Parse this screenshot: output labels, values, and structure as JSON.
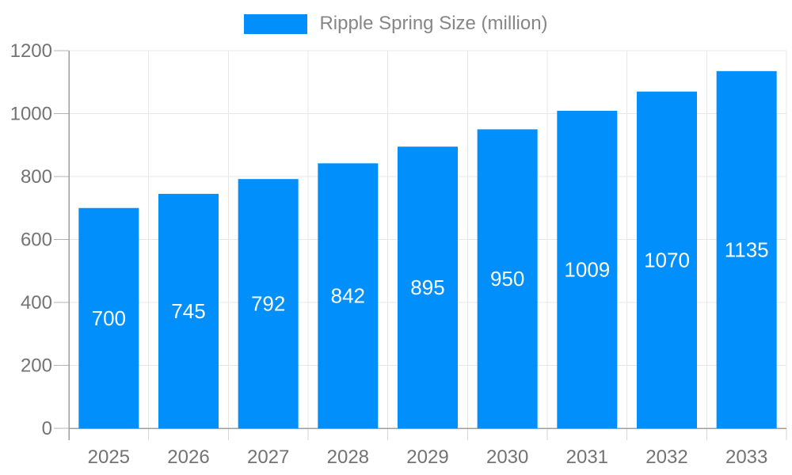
{
  "chart_data": {
    "type": "bar",
    "title": "Ripple Spring Size (million)",
    "series_name": "Ripple Spring Size (million)",
    "categories": [
      "2025",
      "2026",
      "2027",
      "2028",
      "2029",
      "2030",
      "2031",
      "2032",
      "2033"
    ],
    "values": [
      700,
      745,
      792,
      842,
      895,
      950,
      1009,
      1070,
      1135
    ],
    "xlabel": "",
    "ylabel": "",
    "ylim": [
      0,
      1200
    ],
    "yticks": [
      0,
      200,
      400,
      600,
      800,
      1000,
      1200
    ],
    "grid": true,
    "legend_position": "top",
    "bar_color": "#008FFB",
    "value_label_color": "#ffffff",
    "axis_text_color": "#737373",
    "grid_color": "#e7e7e7",
    "axis_line_color": "#9e9e9e",
    "tick_color": "#b3b3b3",
    "x_tick_color": "#d6d6d6"
  }
}
